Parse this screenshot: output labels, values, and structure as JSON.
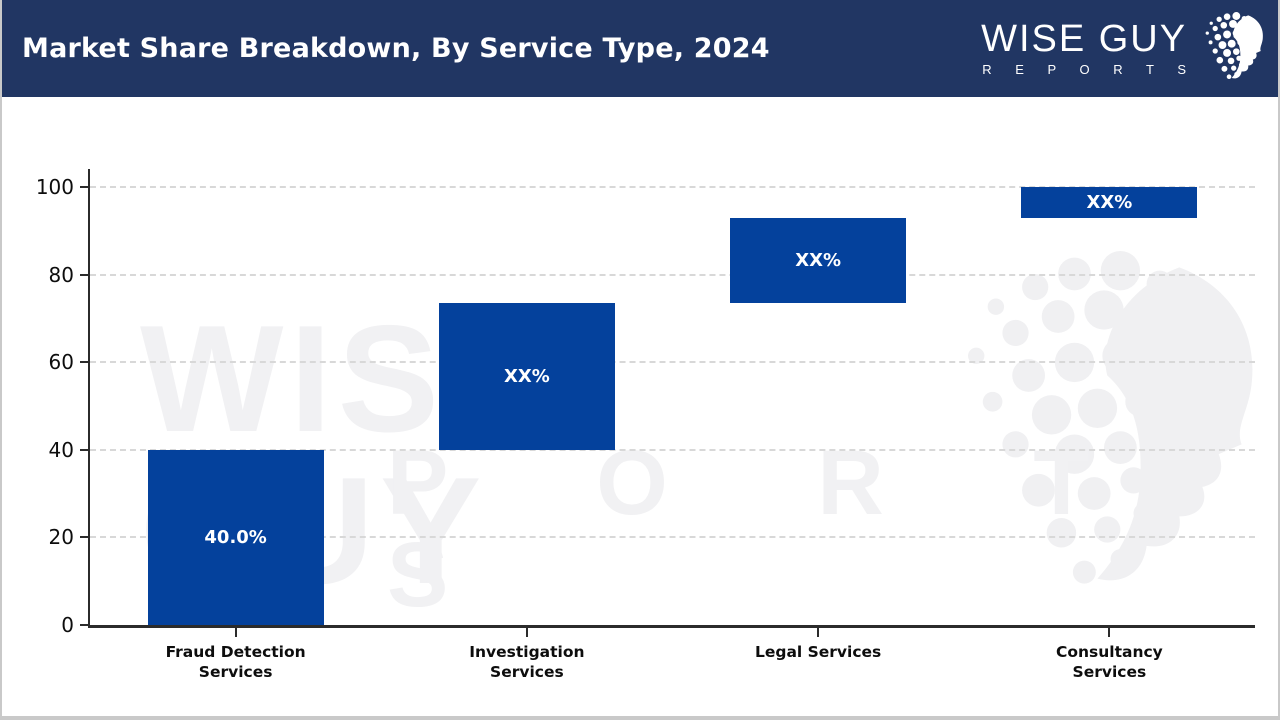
{
  "header": {
    "title": "Market Share Breakdown, By Service Type, 2024",
    "logo_line1": "WISE GUY",
    "logo_line2": "R E P O R T S"
  },
  "watermark": {
    "line1": "WISE GUY",
    "line2": "P O R T S"
  },
  "chart_data": {
    "type": "bar",
    "subtype": "waterfall",
    "title": "Market Share Breakdown, By Service Type, 2024",
    "categories": [
      "Fraud Detection Services",
      "Investigation Services",
      "Legal Services",
      "Consultancy Services"
    ],
    "category_lines": [
      [
        "Fraud Detection",
        "Services"
      ],
      [
        "Investigation",
        "Services"
      ],
      [
        "Legal Services"
      ],
      [
        "Consultancy",
        "Services"
      ]
    ],
    "segments": [
      {
        "category": "Fraud Detection Services",
        "start": 0,
        "end": 40,
        "value": 40,
        "label": "40.0%"
      },
      {
        "category": "Investigation Services",
        "start": 40,
        "end": 73.5,
        "value": 33.5,
        "label": "XX%"
      },
      {
        "category": "Legal Services",
        "start": 73.5,
        "end": 93,
        "value": 19.5,
        "label": "XX%"
      },
      {
        "category": "Consultancy Services",
        "start": 93,
        "end": 100,
        "value": 7,
        "label": "XX%"
      }
    ],
    "ylim": [
      0,
      100
    ],
    "yticks": [
      0,
      20,
      40,
      60,
      80,
      100
    ],
    "xlabel": "",
    "ylabel": "",
    "grid": "horizontal-dashed",
    "legend": "none"
  },
  "colors": {
    "header_bg": "#213663",
    "bar": "#04419c",
    "bar_label": "#ffffff",
    "grid": "#d8d8d8",
    "axis": "#2b2b2b",
    "watermark": "#f1f1f3",
    "page_border": "#c9c9c9"
  }
}
